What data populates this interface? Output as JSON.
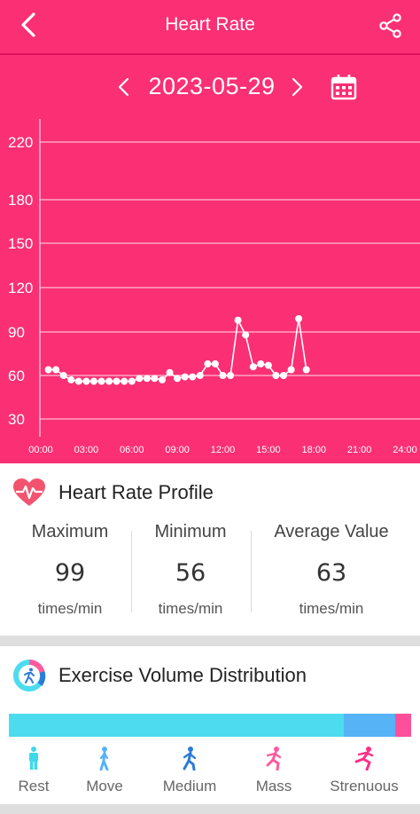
{
  "header": {
    "title": "Heart Rate",
    "back_icon": "back-arrow-icon",
    "share_icon": "share-icon"
  },
  "date_nav": {
    "date": "2023-05-29",
    "prev_icon": "chevron-left-icon",
    "next_icon": "chevron-right-icon",
    "calendar_icon": "calendar-icon"
  },
  "colors": {
    "accent": "#fb2f74",
    "bar_rest": "#4ddcef",
    "bar_move": "#56b3f5",
    "bar_strenuous": "#ff4f9b",
    "icon_rest": "#3fd8ea",
    "icon_move": "#56b3f5",
    "icon_medium": "#2b7bd8",
    "icon_mass": "#ff5a9e",
    "icon_strenuous": "#ff2f86"
  },
  "chart_data": {
    "type": "line",
    "y_ticks": [
      220,
      180,
      150,
      120,
      90,
      60,
      30
    ],
    "x_ticks": [
      "00:00",
      "03:00",
      "06:00",
      "09:00",
      "12:00",
      "15:00",
      "18:00",
      "21:00",
      "24:00"
    ],
    "xlim": [
      0,
      24
    ],
    "grid": true,
    "series": [
      {
        "x": [
          0.5,
          1.0,
          1.5,
          2.0,
          2.5,
          3.0,
          3.5,
          4.0,
          4.5,
          5.0,
          5.5,
          6.0,
          6.5,
          7.0,
          7.5,
          8.0,
          8.5,
          9.0,
          9.5,
          10.0,
          10.5,
          11.0,
          11.5,
          12.0,
          12.5,
          13.0,
          13.5,
          14.0,
          14.5,
          15.0,
          15.5,
          16.0,
          16.5,
          17.0,
          17.5
        ],
        "y": [
          64,
          64,
          60,
          57,
          56,
          56,
          56,
          56,
          56,
          56,
          56,
          56,
          58,
          58,
          58,
          57,
          62,
          58,
          59,
          59,
          60,
          68,
          68,
          60,
          60,
          98,
          88,
          66,
          68,
          67,
          60,
          60,
          64,
          99,
          64
        ]
      }
    ]
  },
  "profile": {
    "title": "Heart Rate Profile",
    "icon": "heartbeat-icon",
    "stats": [
      {
        "label": "Maximum",
        "value": "99",
        "unit": "times/min"
      },
      {
        "label": "Minimum",
        "value": "56",
        "unit": "times/min"
      },
      {
        "label": "Average Value",
        "value": "63",
        "unit": "times/min"
      }
    ]
  },
  "exercise": {
    "title": "Exercise Volume Distribution",
    "icon": "exercise-ring-icon",
    "distribution": [
      {
        "level": "Rest",
        "fraction": 0.833
      },
      {
        "level": "Move",
        "fraction": 0.128
      },
      {
        "level": "Strenuous",
        "fraction": 0.039
      }
    ],
    "levels": [
      {
        "label": "Rest",
        "icon": "standing-person-icon"
      },
      {
        "label": "Move",
        "icon": "walking-person-icon"
      },
      {
        "label": "Medium",
        "icon": "brisk-walk-icon"
      },
      {
        "label": "Mass",
        "icon": "running-person-icon"
      },
      {
        "label": "Strenuous",
        "icon": "sprinting-person-icon"
      }
    ]
  }
}
